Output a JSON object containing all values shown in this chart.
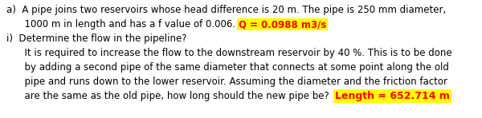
{
  "line1a_pre": "a)  A pipe joins two reservoirs whose head difference is 20 m. The pipe is 250 mm diameter,",
  "line1b_pre": "      1000 m in length and has a f value of 0.006. ",
  "line1b_highlight": "Q = 0.0988 m3/s",
  "line2": "i)  Determine the flow in the pipeline?",
  "line3": "      It is required to increase the flow to the downstream reservoir by 40 %. This is to be done",
  "line4": "      by adding a second pipe of the same diameter that connects at some point along the old",
  "line5": "      pipe and runs down to the lower reservoir. Assuming the diameter and the friction factor",
  "line6a": "      are the same as the old pipe, how long should the new pipe be?  ",
  "line6b": "Length = 652.714 m",
  "highlight_bg": "#FFFF00",
  "text_color": "#000000",
  "highlight_text_color": "#FF0000",
  "bg_color": "#FFFFFF",
  "font_size": 8.5
}
